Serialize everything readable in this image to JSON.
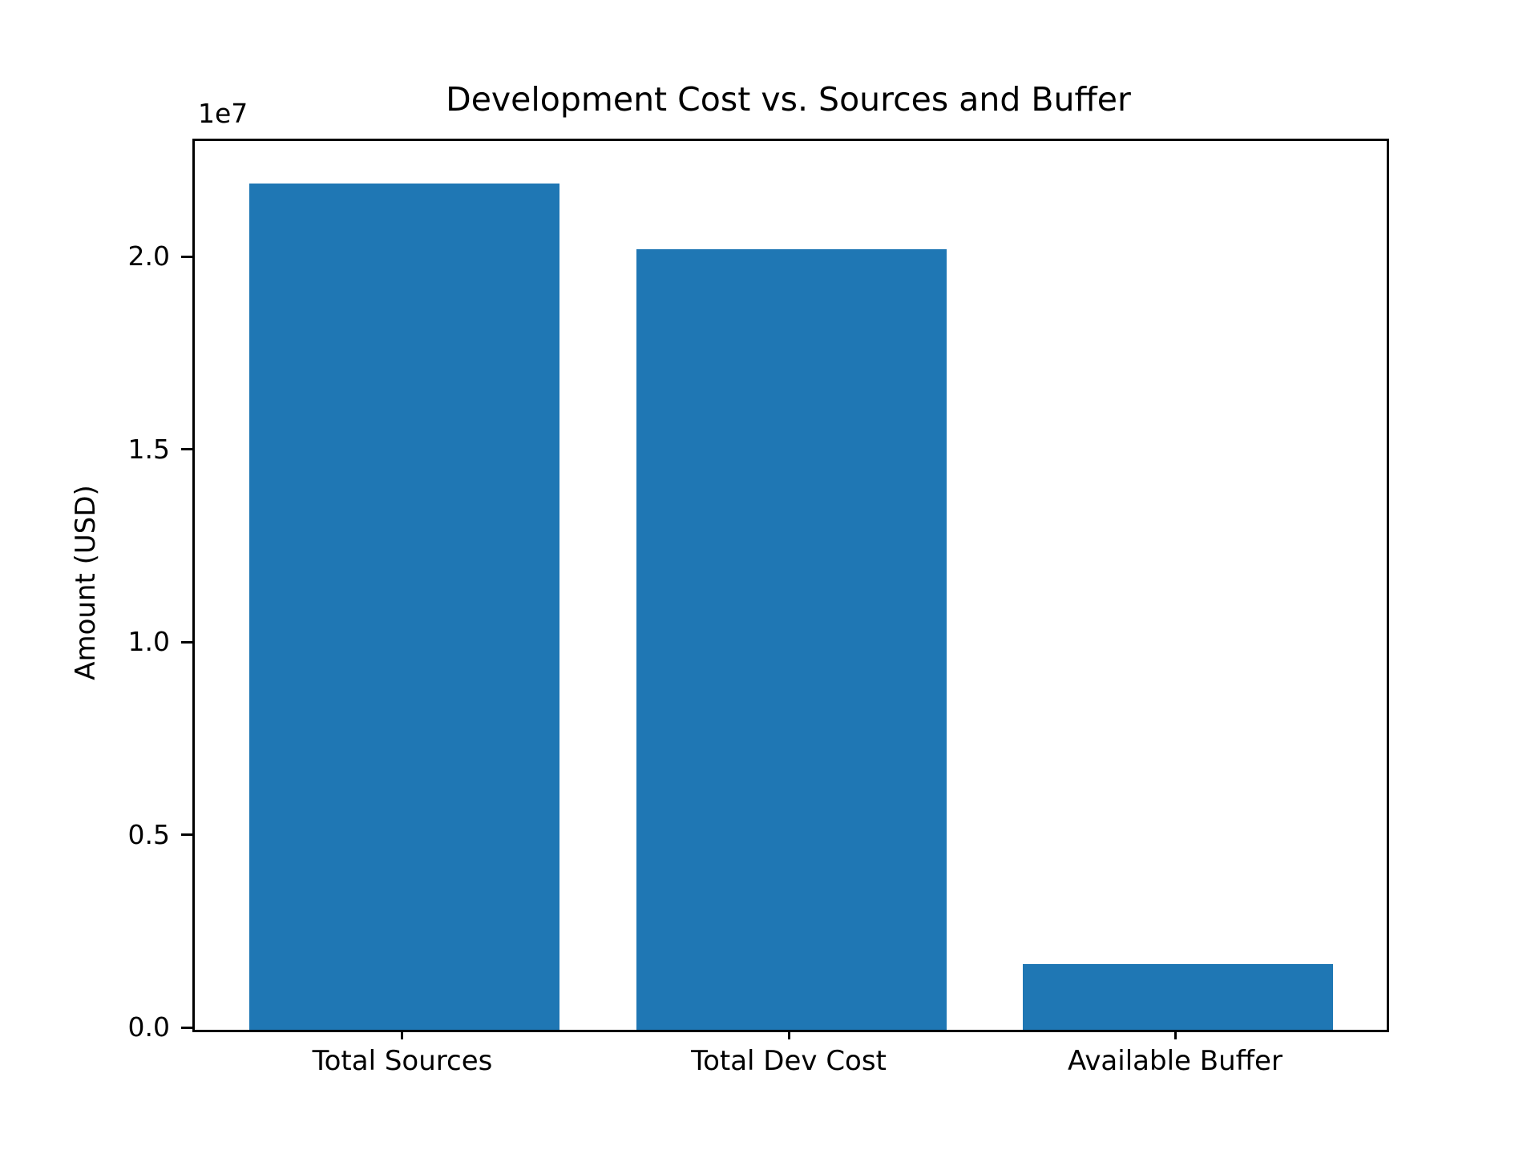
{
  "chart_data": {
    "type": "bar",
    "title": "Development Cost vs. Sources and Buffer",
    "categories": [
      "Total Sources",
      "Total Dev Cost",
      "Available Buffer"
    ],
    "values": [
      21950000,
      20250000,
      1700000
    ],
    "series": [
      {
        "name": "Amount",
        "values": [
          21950000,
          20250000,
          1700000
        ]
      }
    ],
    "xlabel": "",
    "ylabel": "Amount (USD)",
    "ylim": [
      0,
      23050000
    ],
    "yticks": [
      0,
      5000000,
      10000000,
      15000000,
      20000000
    ],
    "ytick_labels": [
      "0.0",
      "0.5",
      "1.0",
      "1.5",
      "2.0"
    ],
    "y_offset_label": "1e7",
    "bar_color": "#1f77b4",
    "axis_color": "#000000",
    "background_color": "#ffffff",
    "grid": false,
    "legend": null
  }
}
